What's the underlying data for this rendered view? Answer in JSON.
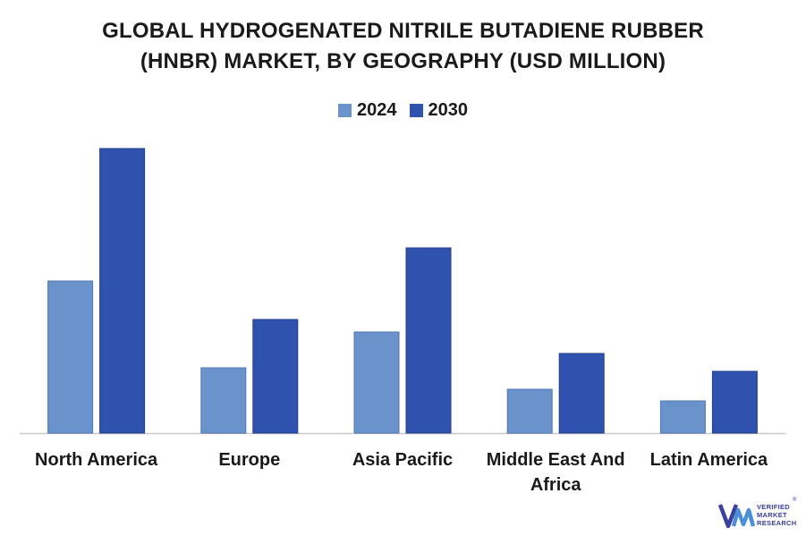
{
  "title_line1": "GLOBAL HYDROGENATED NITRILE BUTADIENE RUBBER",
  "title_line2": "(HNBR) MARKET, BY GEOGRAPHY (USD MILLION)",
  "colors": {
    "series_2024": "#6a93cc",
    "series_2030": "#2e52ae",
    "axis": "#c8c8c8"
  },
  "brand": {
    "line1": "VERIFIED",
    "line2": "MARKET",
    "line3": "RESEARCH",
    "reg": "®"
  },
  "chart_data": {
    "type": "bar",
    "categories": [
      "North America",
      "Europe",
      "Asia Pacific",
      "Middle East And Africa",
      "Latin America"
    ],
    "series": [
      {
        "name": "2024",
        "values": [
          170,
          73,
          113,
          49,
          36
        ]
      },
      {
        "name": "2030",
        "values": [
          318,
          127,
          207,
          89,
          69
        ]
      }
    ],
    "ylim": [
      0,
      340
    ],
    "xlabel": "",
    "ylabel": "",
    "grid": false,
    "legend_position": "top-center"
  }
}
